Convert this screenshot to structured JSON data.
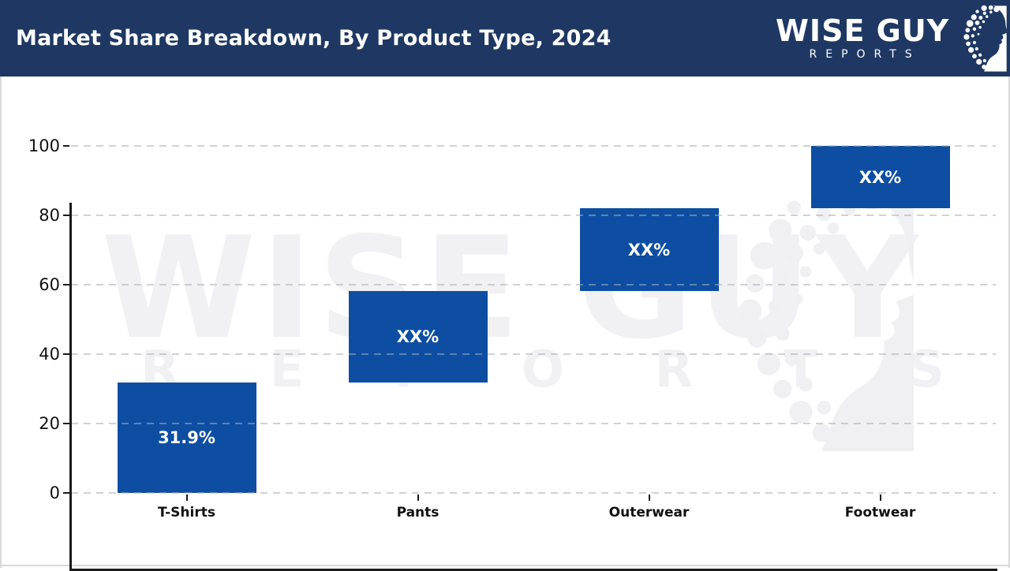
{
  "header": {
    "title": "Market Share Breakdown, By Product Type, 2024",
    "logo": {
      "line1": "WISE GUY",
      "line2": "REPORTS"
    },
    "bg_color": "#1e3863",
    "text_color": "#ffffff"
  },
  "watermark": {
    "line1": "WISE GUY",
    "line2": "R E P O R T S"
  },
  "chart_data": {
    "type": "bar",
    "subtype": "waterfall",
    "title": "Market Share Breakdown, By Product Type, 2024",
    "categories": [
      "T-Shirts",
      "Pants",
      "Outerwear",
      "Footwear"
    ],
    "series": [
      {
        "name": "Market share (%)",
        "segments": [
          {
            "category": "T-Shirts",
            "from": 0,
            "to": 31.9,
            "label": "31.9%"
          },
          {
            "category": "Pants",
            "from": 31.9,
            "to": 58.2,
            "label": "XX%"
          },
          {
            "category": "Outerwear",
            "from": 58.2,
            "to": 82,
            "label": "XX%"
          },
          {
            "category": "Footwear",
            "from": 82,
            "to": 100,
            "label": "XX%"
          }
        ]
      }
    ],
    "xlabel": "",
    "ylabel": "",
    "ylim": [
      0,
      100
    ],
    "yticks": [
      0,
      20,
      40,
      60,
      80,
      100
    ],
    "grid": "dashed-horizontal",
    "legend": "none",
    "colors": {
      "bar": "#0d4ea3",
      "bar_label": "#ffffff",
      "grid": "rgba(168,172,180,0.55)",
      "axis": "#1a1a1a",
      "tick_label": "#111111"
    }
  },
  "page": {
    "background": "#ffffff",
    "border": "#d9d9d9"
  }
}
